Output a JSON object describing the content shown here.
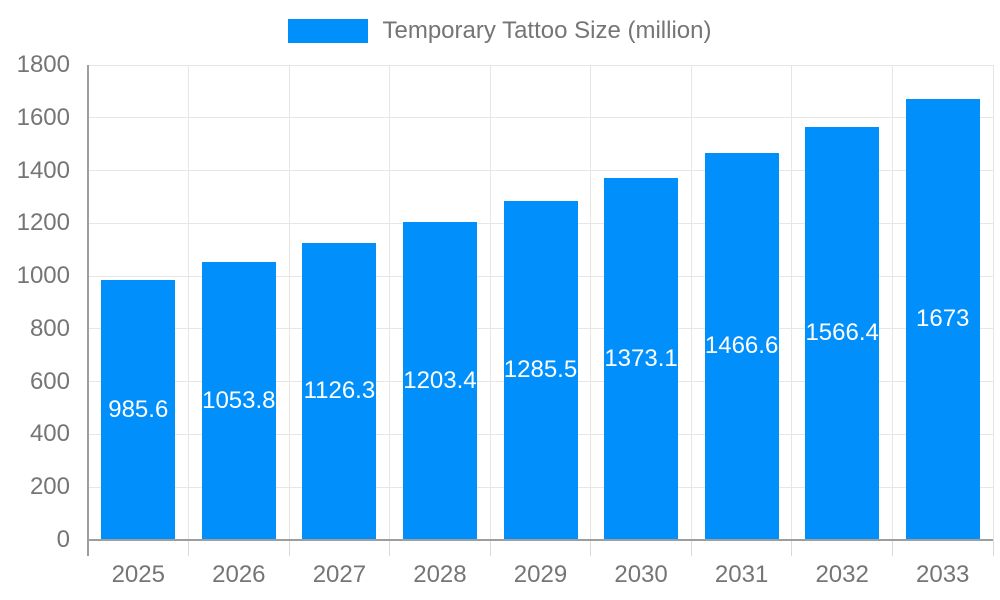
{
  "legend": {
    "label": "Temporary Tattoo Size (million)"
  },
  "colors": {
    "bar": "#008FFB",
    "grid": "#e6e6e6",
    "axis": "#9e9e9e",
    "tick": "#d9d9d9",
    "axis_text": "#757575",
    "value_text": "#ffffff",
    "background": "#ffffff"
  },
  "chart_data": {
    "type": "bar",
    "title": "Temporary Tattoo Size (million)",
    "categories": [
      "2025",
      "2026",
      "2027",
      "2028",
      "2029",
      "2030",
      "2031",
      "2032",
      "2033"
    ],
    "values": [
      985.6,
      1053.8,
      1126.3,
      1203.4,
      1285.5,
      1373.1,
      1466.6,
      1566.4,
      1673
    ],
    "value_labels": [
      "985.6",
      "1053.8",
      "1126.3",
      "1203.4",
      "1285.5",
      "1373.1",
      "1466.6",
      "1566.4",
      "1673"
    ],
    "xlabel": "",
    "ylabel": "",
    "ylim": [
      0,
      1800
    ],
    "yticks": [
      0,
      200,
      400,
      600,
      800,
      1000,
      1200,
      1400,
      1600,
      1800
    ],
    "grid": true,
    "legend_position": "top-center",
    "value_label_position": "inside-center",
    "series": [
      {
        "name": "Temporary Tattoo Size (million)",
        "values": [
          985.6,
          1053.8,
          1126.3,
          1203.4,
          1285.5,
          1373.1,
          1466.6,
          1566.4,
          1673
        ]
      }
    ]
  }
}
